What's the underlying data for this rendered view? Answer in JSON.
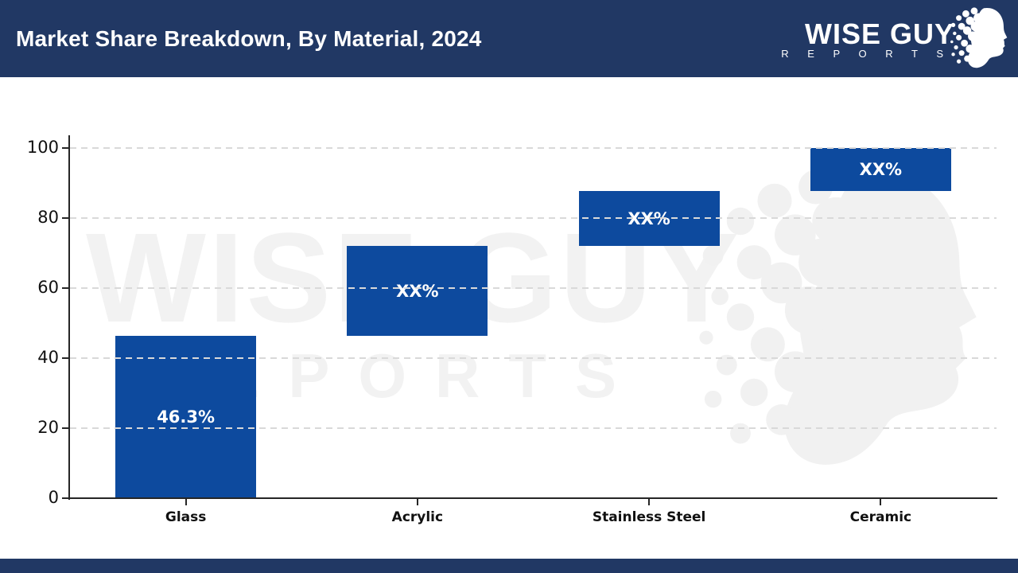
{
  "colors": {
    "navy": "#213864",
    "bar_blue": "#0d4a9e",
    "gridline": "#d9d9d9",
    "axis": "#262626",
    "watermark": "#f2f2f2",
    "bar_label": "#ffffff"
  },
  "header": {
    "title": "Market Share Breakdown, By Material, 2024",
    "brand": {
      "line1": "WISE GUY",
      "line2": "REPORTS"
    }
  },
  "watermark": {
    "line1": "WISE GUY",
    "line2": "REPORTS"
  },
  "chart_data": {
    "type": "bar",
    "subtype": "waterfall",
    "title": "Market Share Breakdown, By Material, 2024",
    "categories": [
      "Glass",
      "Acrylic",
      "Stainless Steel",
      "Ceramic"
    ],
    "segments": [
      {
        "category": "Glass",
        "start": 0,
        "end": 46.3,
        "value": 46.3,
        "label": "46.3%"
      },
      {
        "category": "Acrylic",
        "start": 46.3,
        "end": 72.2,
        "value": 25.9,
        "label": "XX%"
      },
      {
        "category": "Stainless Steel",
        "start": 72.2,
        "end": 87.7,
        "value": 15.5,
        "label": "XX%"
      },
      {
        "category": "Ceramic",
        "start": 87.7,
        "end": 100,
        "value": 12.3,
        "label": "XX%"
      }
    ],
    "xlabel": "",
    "ylabel": "",
    "ylim": [
      0,
      100
    ],
    "yticks": [
      0,
      20,
      40,
      60,
      80,
      100
    ],
    "grid": "horizontal dashed, drawn over bars",
    "legend": "none"
  }
}
